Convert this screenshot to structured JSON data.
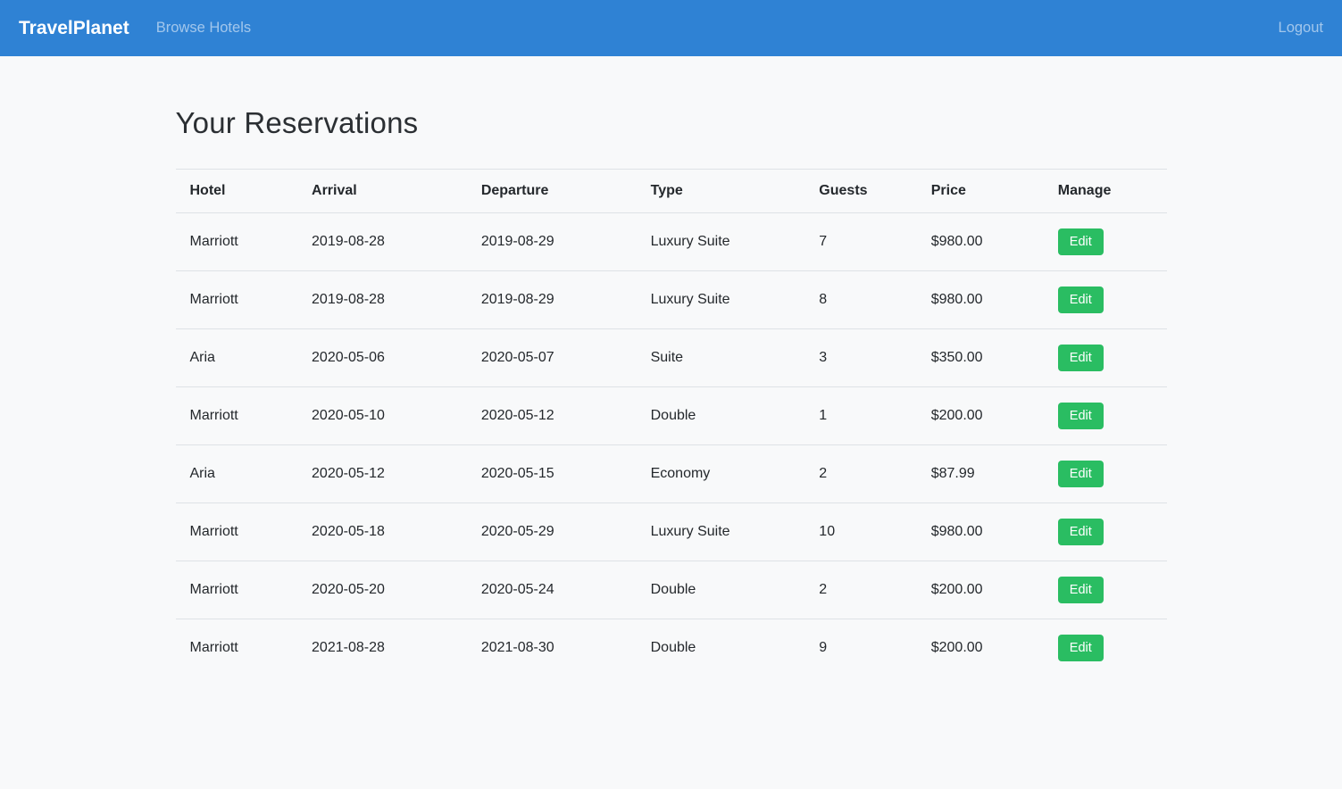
{
  "navbar": {
    "brand": "TravelPlanet",
    "browse_hotels_label": "Browse Hotels",
    "logout_label": "Logout"
  },
  "main": {
    "title": "Your Reservations",
    "table": {
      "columns": [
        "Hotel",
        "Arrival",
        "Departure",
        "Type",
        "Guests",
        "Price",
        "Manage"
      ],
      "edit_label": "Edit",
      "rows": [
        {
          "hotel": "Marriott",
          "arrival": "2019-08-28",
          "departure": "2019-08-29",
          "type": "Luxury Suite",
          "guests": "7",
          "price": "$980.00"
        },
        {
          "hotel": "Marriott",
          "arrival": "2019-08-28",
          "departure": "2019-08-29",
          "type": "Luxury Suite",
          "guests": "8",
          "price": "$980.00"
        },
        {
          "hotel": "Aria",
          "arrival": "2020-05-06",
          "departure": "2020-05-07",
          "type": "Suite",
          "guests": "3",
          "price": "$350.00"
        },
        {
          "hotel": "Marriott",
          "arrival": "2020-05-10",
          "departure": "2020-05-12",
          "type": "Double",
          "guests": "1",
          "price": "$200.00"
        },
        {
          "hotel": "Aria",
          "arrival": "2020-05-12",
          "departure": "2020-05-15",
          "type": "Economy",
          "guests": "2",
          "price": "$87.99"
        },
        {
          "hotel": "Marriott",
          "arrival": "2020-05-18",
          "departure": "2020-05-29",
          "type": "Luxury Suite",
          "guests": "10",
          "price": "$980.00"
        },
        {
          "hotel": "Marriott",
          "arrival": "2020-05-20",
          "departure": "2020-05-24",
          "type": "Double",
          "guests": "2",
          "price": "$200.00"
        },
        {
          "hotel": "Marriott",
          "arrival": "2021-08-28",
          "departure": "2021-08-30",
          "type": "Double",
          "guests": "9",
          "price": "$200.00"
        }
      ]
    }
  },
  "colors": {
    "navbar_blue": "#2f82d4",
    "button_green": "#2abd62",
    "page_background": "#f8f9fa",
    "table_border": "#dee2e6",
    "text_dark": "#24282c"
  }
}
